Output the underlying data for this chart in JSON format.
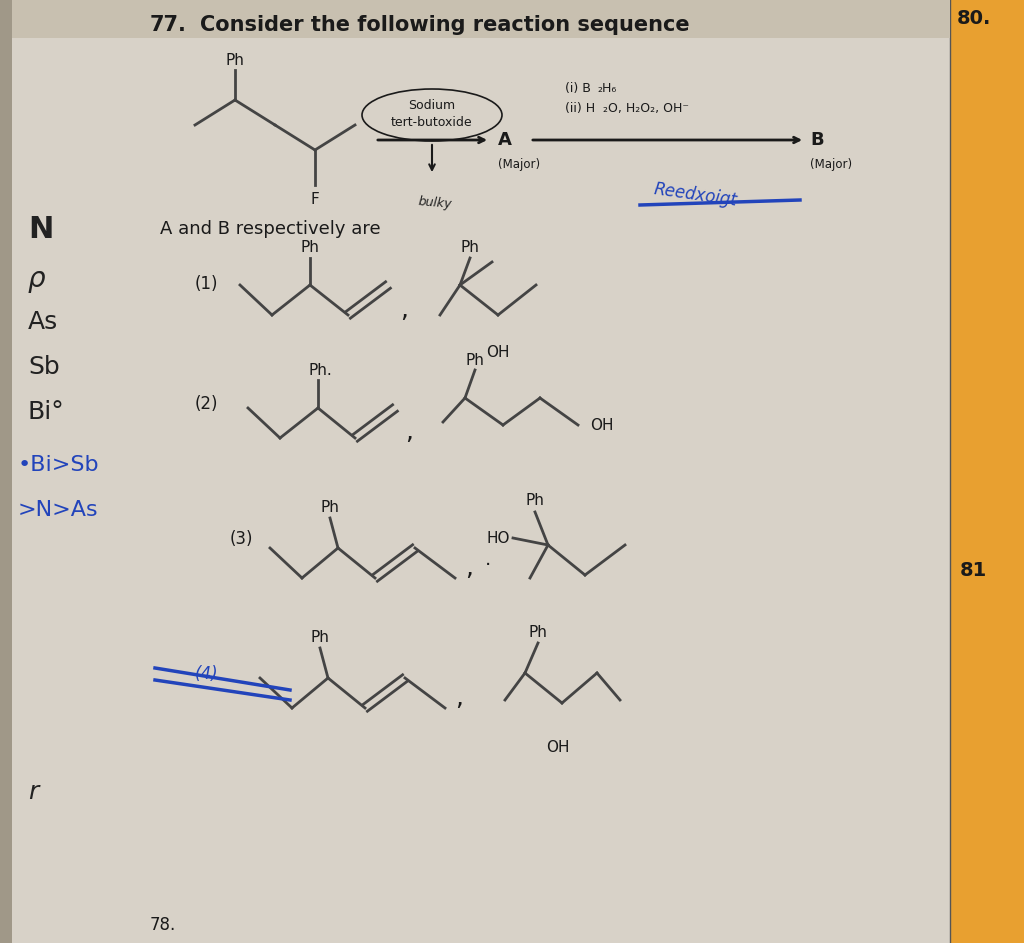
{
  "title_num": "77.",
  "title_text": "  Consider the following reaction sequence",
  "side_num": "80.",
  "bg_color": "#c8c0b0",
  "page_color": "#d8d0c4",
  "text_color": "#1a1a1a",
  "hand_blue": "#2244bb",
  "hand_dark": "#222222",
  "orange_color": "#e8a030",
  "right_bar_color": "#d8d0c4",
  "line_color": "#444444"
}
